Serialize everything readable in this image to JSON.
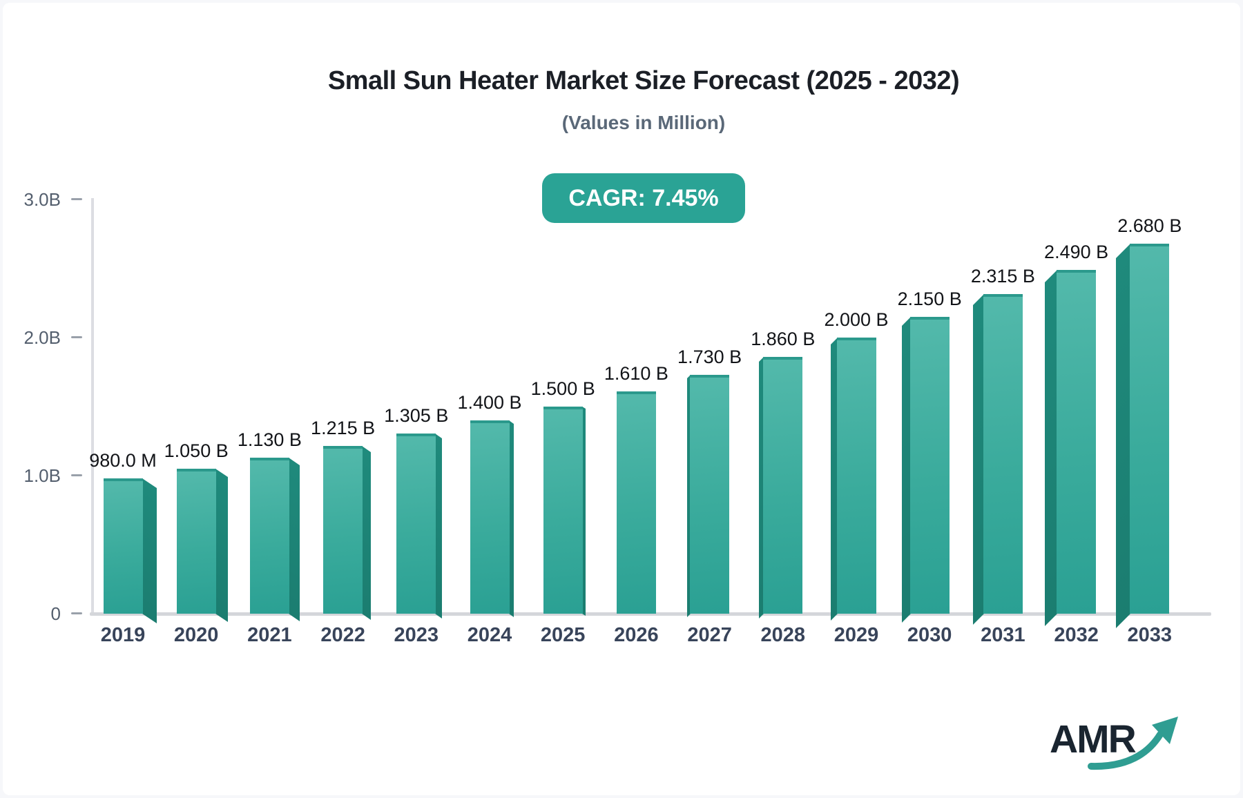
{
  "header": {
    "title": "Small Sun Heater Market Size Forecast (2025 - 2032)",
    "subtitle": "(Values in Million)",
    "cagr_badge": "CAGR: 7.45%",
    "badge_color": "#2aa395"
  },
  "chart_data": {
    "type": "bar",
    "title": "Small Sun Heater Market Size Forecast (2025 - 2032)",
    "subtitle": "(Values in Million)",
    "categories": [
      "2019",
      "2020",
      "2021",
      "2022",
      "2023",
      "2024",
      "2025",
      "2026",
      "2027",
      "2028",
      "2029",
      "2030",
      "2031",
      "2032",
      "2033"
    ],
    "values_billions": [
      0.98,
      1.05,
      1.13,
      1.215,
      1.305,
      1.4,
      1.5,
      1.61,
      1.73,
      1.86,
      2.0,
      2.15,
      2.315,
      2.49,
      2.68
    ],
    "value_labels": [
      "980.0 M",
      "1.050 B",
      "1.130 B",
      "1.215 B",
      "1.305 B",
      "1.400 B",
      "1.500 B",
      "1.610 B",
      "1.730 B",
      "1.860 B",
      "2.000 B",
      "2.150 B",
      "2.315 B",
      "2.490 B",
      "2.680 B"
    ],
    "y_ticks": [
      {
        "label": "3.0B",
        "value": 3.0
      },
      {
        "label": "2.0B",
        "value": 2.0
      },
      {
        "label": "1.0B",
        "value": 1.0
      },
      {
        "label": "0",
        "value": 0.0
      }
    ],
    "ylim": [
      0,
      3.0
    ],
    "grid": false,
    "legend": false,
    "bar_front_color_top": "#53b9ab",
    "bar_front_color_bottom": "#2aa093",
    "bar_side_color": "#1e8577",
    "axis_color": "#d4d6da"
  },
  "logo": {
    "text": "AMR",
    "arrow_color": "#2f9d92",
    "text_color": "#1a2530"
  }
}
